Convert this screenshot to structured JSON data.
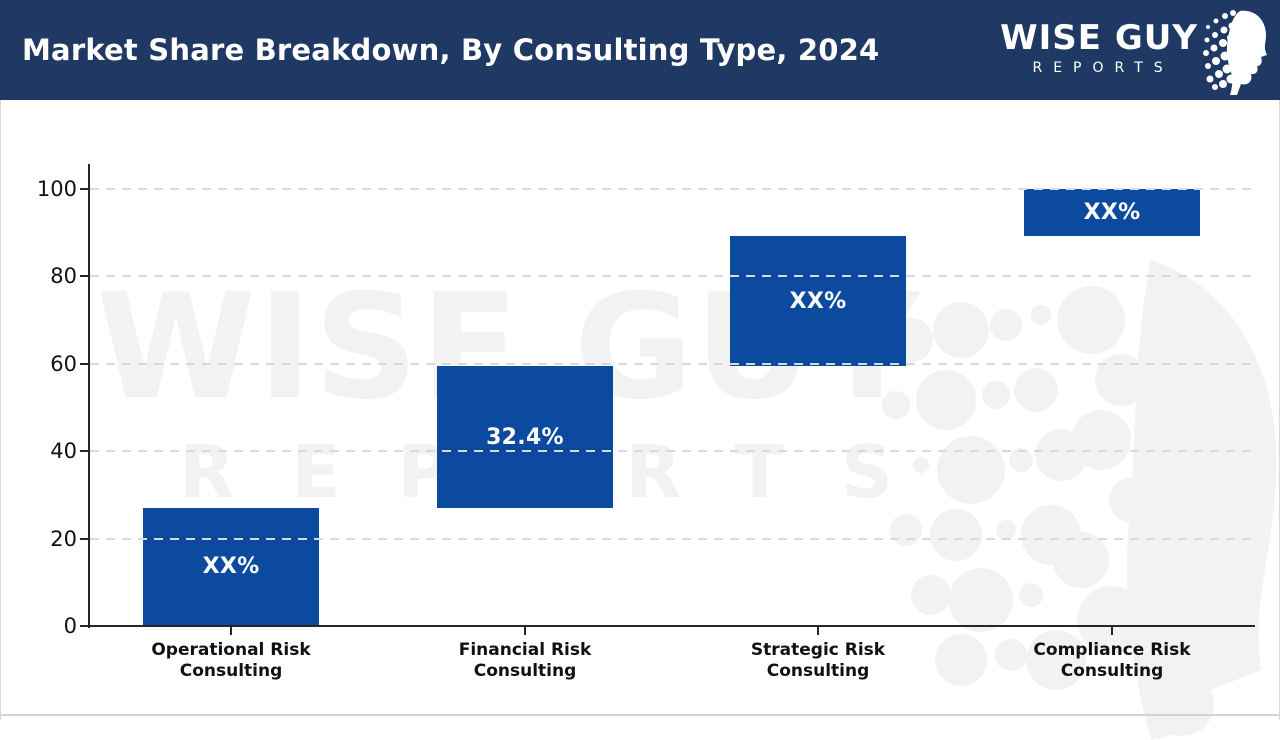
{
  "header": {
    "title": "Market Share Breakdown, By Consulting Type, 2024",
    "bg_color": "#1f3864",
    "logo": {
      "name_top": "WISE GUY",
      "name_bottom": "REPORTS"
    }
  },
  "watermark": {
    "line1": "WISE GUY",
    "line2": "REPORTS"
  },
  "chart_data": {
    "type": "bar",
    "subtype": "waterfall-stacked-segments",
    "title": "Market Share Breakdown, By Consulting Type, 2024",
    "categories": [
      "Operational Risk Consulting",
      "Financial Risk Consulting",
      "Strategic Risk Consulting",
      "Compliance Risk Consulting"
    ],
    "starts": [
      0,
      27.0,
      59.4,
      89.3
    ],
    "values": [
      27.0,
      32.4,
      29.9,
      10.7
    ],
    "labels": [
      "XX%",
      "32.4%",
      "XX%",
      "XX%"
    ],
    "xlabel": "",
    "ylabel": "",
    "ylim": [
      0,
      100
    ],
    "yticks": [
      0,
      20,
      40,
      60,
      80,
      100
    ],
    "grid": "dashed-horizontal-over-bars",
    "legend": "none",
    "colors": {
      "bar": "#0b4a9f",
      "bar_label": "#ffffff",
      "axis": "#262626",
      "tick_label": "#111111",
      "gridline": "#d9d9d9",
      "watermark": "#f2f2f2",
      "header_bg": "#1f3864"
    }
  }
}
